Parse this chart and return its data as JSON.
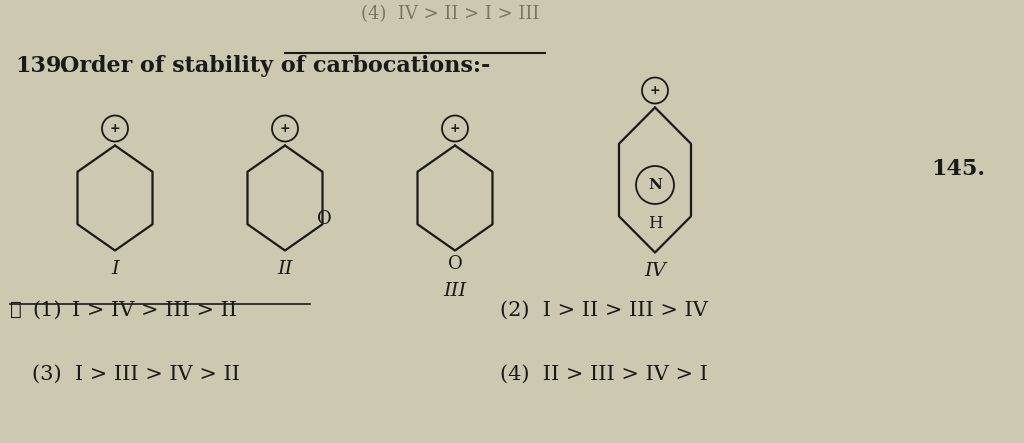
{
  "background_color": "#cdc8b0",
  "question_number": "139.",
  "question_text": "Order of stability of carbocations:-",
  "side_number": "145.",
  "top_text": "(4)  IV > II > I > III",
  "answer_options": [
    "I > IV > III > II",
    "(2)  I > II > III > IV",
    "(3)  I > III > IV > II",
    "(4)  II > III > IV > I"
  ],
  "molecule_labels": [
    "I",
    "II",
    "III",
    "IV"
  ],
  "title_fontsize": 16,
  "answer_fontsize": 15,
  "text_color": "#1a1a1a"
}
